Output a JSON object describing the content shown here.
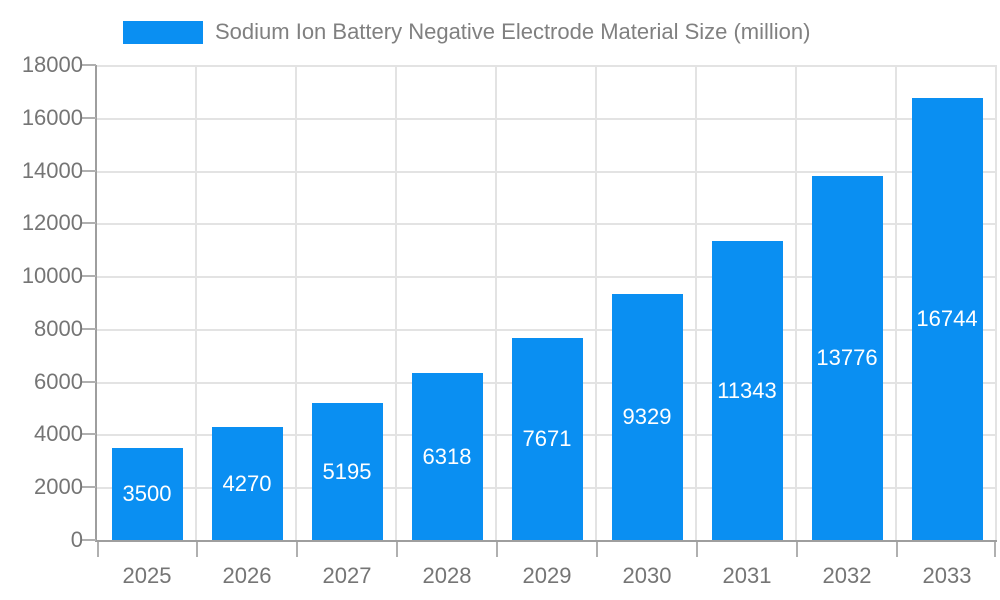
{
  "legend": {
    "label": "Sodium Ion Battery Negative Electrode Material Size (million)",
    "swatch_color": "#0a8ff2"
  },
  "chart_data": {
    "type": "bar",
    "title": "Sodium Ion Battery Negative Electrode Material Size (million)",
    "categories": [
      "2025",
      "2026",
      "2027",
      "2028",
      "2029",
      "2030",
      "2031",
      "2032",
      "2033"
    ],
    "values": [
      3500,
      4270,
      5195,
      6318,
      7671,
      9329,
      11343,
      13776,
      16744
    ],
    "xlabel": "",
    "ylabel": "",
    "ylim": [
      0,
      18000
    ],
    "yticks": [
      0,
      2000,
      4000,
      6000,
      8000,
      10000,
      12000,
      14000,
      16000,
      18000
    ],
    "grid": true,
    "legend_position": "top",
    "bar_color": "#0a8ff2",
    "value_label_position": "inside-center",
    "value_label_color": "#ffffff",
    "axis_text_color": "#757575",
    "legend_text_color": "#808080",
    "grid_color": "#e3e3e3",
    "axis_line_color": "#9e9e9e",
    "tick_color": "#b0b0b0",
    "background_color": "#ffffff"
  }
}
